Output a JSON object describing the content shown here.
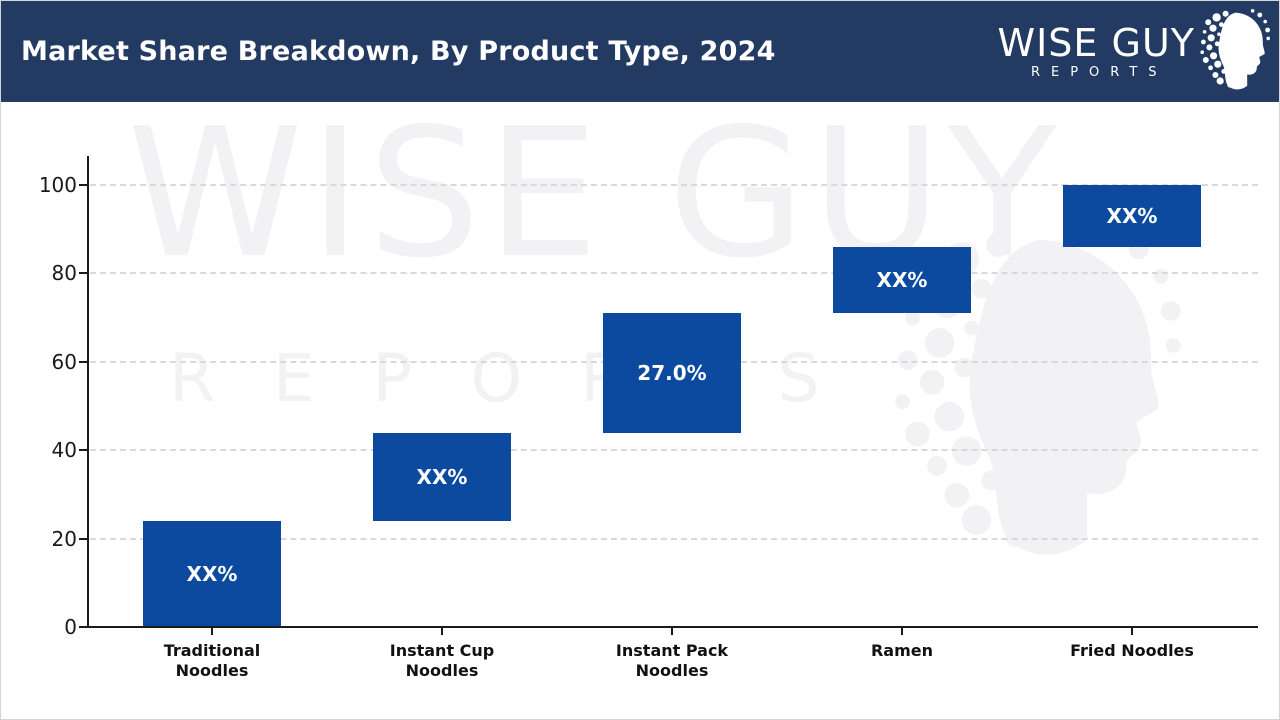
{
  "header": {
    "title": "Market Share Breakdown, By Product Type, 2024",
    "bg_color": "#233a63",
    "logo": {
      "wordmark": "WISE GUY",
      "sub": "REPORTS"
    }
  },
  "watermark": {
    "line1": "WISE GUY",
    "line2": "REPORTS"
  },
  "chart_data": {
    "type": "bar",
    "subtype": "floating-waterfall",
    "title": "Market Share Breakdown, By Product Type, 2024",
    "xlabel": "",
    "ylabel": "",
    "categories": [
      "Traditional Noodles",
      "Instant Cup Noodles",
      "Instant Pack Noodles",
      "Ramen",
      "Fried Noodles"
    ],
    "segments": [
      {
        "category": "Traditional Noodles",
        "start": 0,
        "end": 24,
        "value": 24,
        "label": "XX%"
      },
      {
        "category": "Instant Cup Noodles",
        "start": 24,
        "end": 44,
        "value": 20,
        "label": "XX%"
      },
      {
        "category": "Instant Pack Noodles",
        "start": 44,
        "end": 71,
        "value": 27,
        "label": "27.0%"
      },
      {
        "category": "Ramen",
        "start": 71,
        "end": 86,
        "value": 15,
        "label": "XX%"
      },
      {
        "category": "Fried Noodles",
        "start": 86,
        "end": 100,
        "value": 14,
        "label": "XX%"
      }
    ],
    "yticks": [
      0,
      20,
      40,
      60,
      80,
      100
    ],
    "ylim": [
      0,
      105
    ],
    "grid": "horizontal-dashed",
    "legend": "none",
    "colors": {
      "bar": "#0b4a9e",
      "bar_label": "#ffffff",
      "axis": "#1a1a1a",
      "gridline": "#d9d9d9",
      "header_bg": "#233a63",
      "watermark": "#f2f2f4"
    }
  }
}
